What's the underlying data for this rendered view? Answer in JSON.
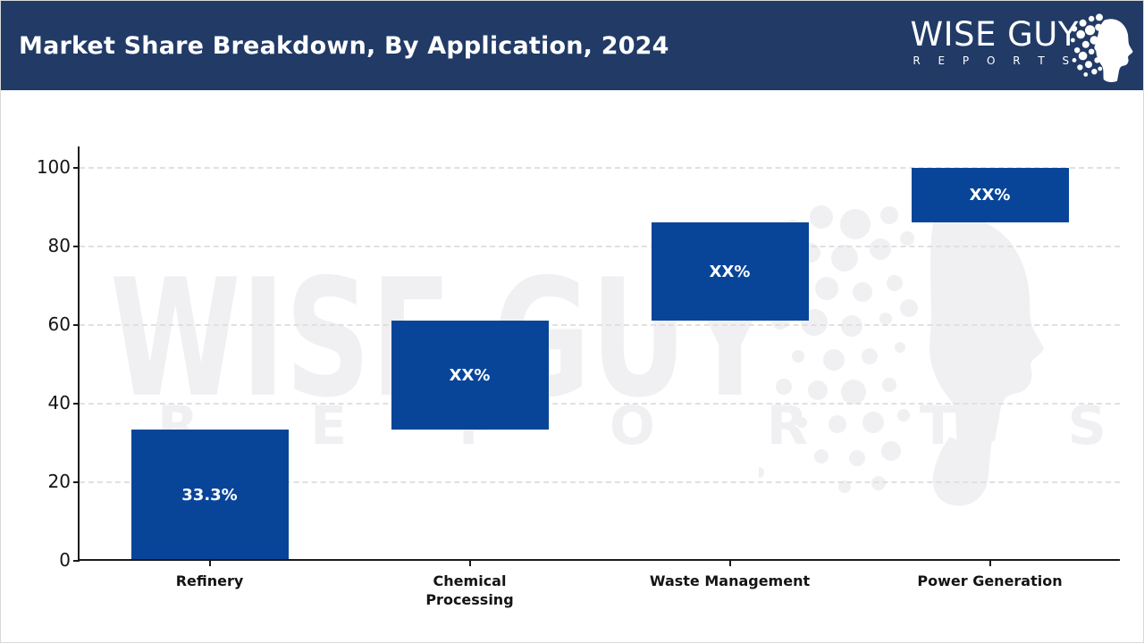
{
  "header": {
    "title": "Market Share Breakdown, By Application, 2024",
    "logo": {
      "brand": "WISE GUY",
      "sub": "R E P O R T S"
    }
  },
  "watermark": {
    "brand": "WISE GUY",
    "sub": "R E P O R T S"
  },
  "chart_data": {
    "type": "bar",
    "variant": "floating-waterfall",
    "title": "Market Share Breakdown, By Application, 2024",
    "categories": [
      "Refinery",
      "Chemical Processing",
      "Waste Management",
      "Power Generation"
    ],
    "tick_labels": [
      "Refinery",
      "Chemical\nProcessing",
      "Waste Management",
      "Power Generation"
    ],
    "bars": [
      {
        "category": "Refinery",
        "start": 0,
        "end": 33.3,
        "label": "33.3%"
      },
      {
        "category": "Chemical Processing",
        "start": 33.3,
        "end": 61.1,
        "label": "XX%"
      },
      {
        "category": "Waste Management",
        "start": 61.1,
        "end": 86.1,
        "label": "XX%"
      },
      {
        "category": "Power Generation",
        "start": 86.1,
        "end": 100,
        "label": "XX%"
      }
    ],
    "yticks": [
      0,
      20,
      40,
      60,
      80,
      100
    ],
    "ylim": [
      0,
      105.5
    ],
    "xlabel": "",
    "ylabel": "",
    "grid": "horizontal-dashed",
    "legend_position": "none",
    "colors": {
      "bar": "#084599",
      "bar_label": "#ffffff",
      "grid": "#e0e0e0",
      "axis": "#1a1a1a",
      "header_bg": "#213a66",
      "watermark": "#f0f0f3"
    }
  }
}
